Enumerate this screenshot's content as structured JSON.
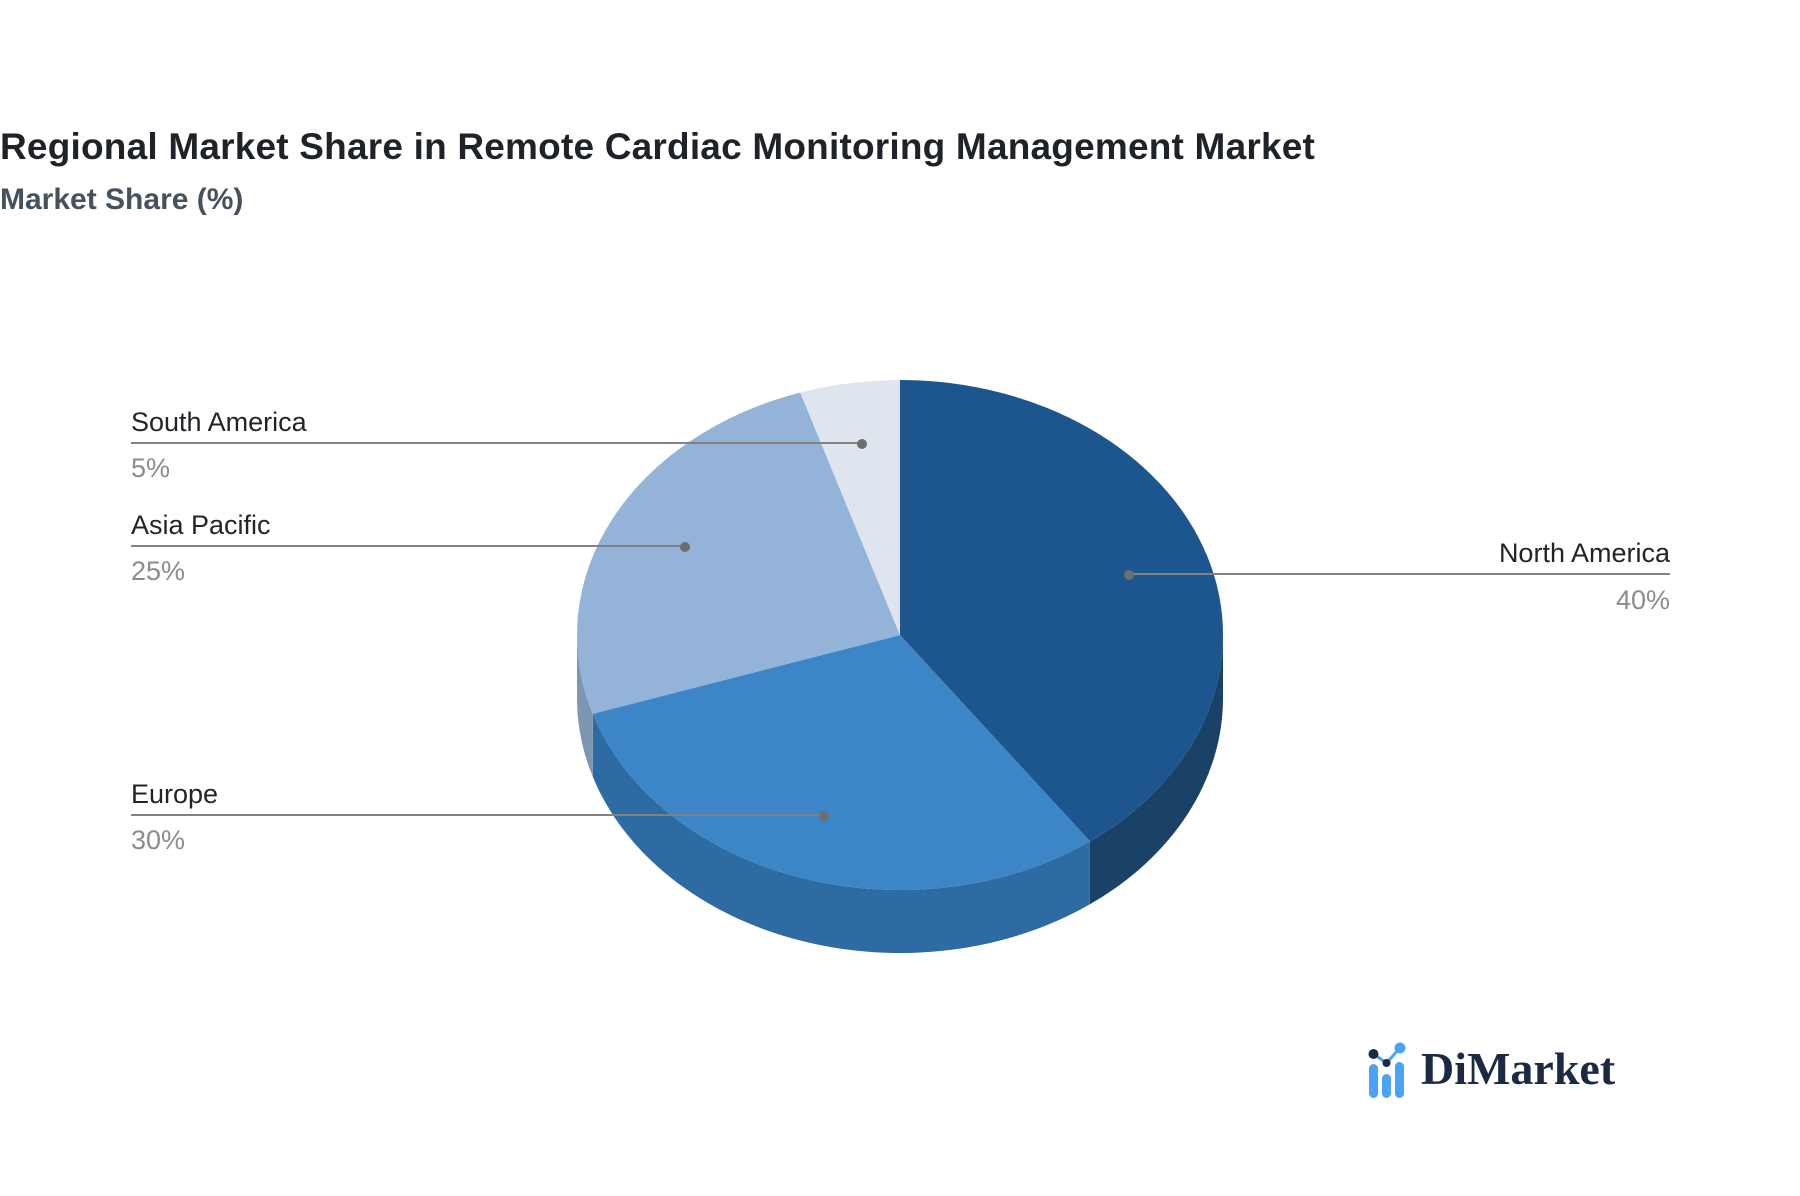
{
  "title": "Regional Market Share in Remote Cardiac Monitoring Management Market",
  "subtitle": "Market Share (%)",
  "chart_data": {
    "type": "pie",
    "style": "3d",
    "title": "Regional Market Share in Remote Cardiac Monitoring Management Market",
    "subtitle": "Market Share (%)",
    "unit": "percent",
    "start_angle": "12-oclock",
    "direction": "clockwise",
    "legend_position": "none",
    "label_style": "leader-lines",
    "slices": [
      {
        "label": "North America",
        "value": 40,
        "display_value": "40%",
        "color": "#1D568F",
        "side_color": "#1A4166",
        "callout_side": "right"
      },
      {
        "label": "Europe",
        "value": 30,
        "display_value": "30%",
        "color": "#3C86C8",
        "side_color": "#2E6BA3",
        "callout_side": "left"
      },
      {
        "label": "Asia Pacific",
        "value": 25,
        "display_value": "25%",
        "color": "#93B4D8",
        "side_color": "#7D96B2",
        "callout_side": "left"
      },
      {
        "label": "South America",
        "value": 5,
        "display_value": "5%",
        "color": "#DFE5EE",
        "side_color": "#C6D2E2",
        "callout_side": "left"
      }
    ]
  },
  "branding": {
    "logo_text": "DiMarket",
    "logo_icon": "bar-chart-with-trend-dots-icon",
    "logo_bar_color": "#4BA3F7",
    "logo_text_color": "#1B2A42"
  },
  "colors": {
    "background": "#FFFFFF",
    "leader_line": "#828282",
    "label_text": "#212529",
    "value_text": "#8C8C8C"
  }
}
